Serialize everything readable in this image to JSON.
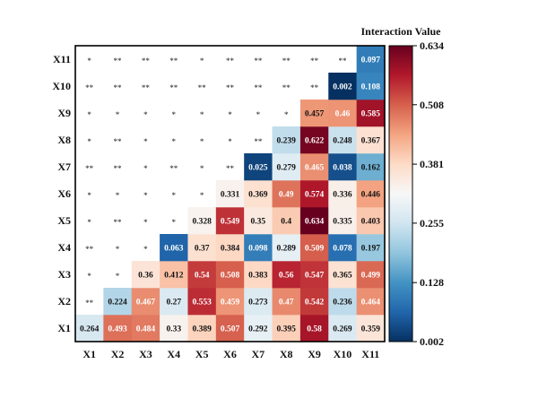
{
  "chart_data": {
    "type": "heatmap",
    "colorbar_title": "Interaction Value",
    "variables": [
      "X1",
      "X2",
      "X3",
      "X4",
      "X5",
      "X6",
      "X7",
      "X8",
      "X9",
      "X10",
      "X11"
    ],
    "value_range": [
      0.002,
      0.634
    ],
    "colorbar_ticks": [
      "0.002",
      "0.128",
      "0.255",
      "0.381",
      "0.508",
      "0.634"
    ],
    "lower_triangle": [
      [
        "0.264",
        "0.493",
        "0.484",
        "0.33",
        "0.389",
        "0.507",
        "0.292",
        "0.395",
        "0.58",
        "0.269",
        "0.359"
      ],
      [
        "0.224",
        "0.467",
        "0.27",
        "0.553",
        "0.459",
        "0.273",
        "0.47",
        "0.542",
        "0.236",
        "0.464"
      ],
      [
        "0.36",
        "0.412",
        "0.54",
        "0.508",
        "0.383",
        "0.56",
        "0.547",
        "0.365",
        "0.499"
      ],
      [
        "0.063",
        "0.37",
        "0.384",
        "0.098",
        "0.289",
        "0.509",
        "0.078",
        "0.197"
      ],
      [
        "0.328",
        "0.549",
        "0.35",
        "0.4",
        "0.634",
        "0.335",
        "0.403"
      ],
      [
        "0.331",
        "0.369",
        "0.49",
        "0.574",
        "0.336",
        "0.446"
      ],
      [
        "0.025",
        "0.279",
        "0.465",
        "0.038",
        "0.162"
      ],
      [
        "0.239",
        "0.622",
        "0.248",
        "0.367"
      ],
      [
        "0.457",
        "0.46",
        "0.585"
      ],
      [
        "0.002",
        "0.108"
      ],
      [
        "0.097"
      ]
    ],
    "upper_triangle_significance": [
      [],
      [
        "**"
      ],
      [
        "*",
        "*"
      ],
      [
        "**",
        "*",
        "*"
      ],
      [
        "*",
        "**",
        "*",
        "*"
      ],
      [
        "*",
        "*",
        "*",
        "*",
        "*"
      ],
      [
        "**",
        "**",
        "*",
        "**",
        "*",
        "**"
      ],
      [
        "*",
        "**",
        "*",
        "*",
        "*",
        "*",
        "**"
      ],
      [
        "*",
        "*",
        "*",
        "*",
        "*",
        "*",
        "*",
        "*"
      ],
      [
        "**",
        "**",
        "**",
        "**",
        "**",
        "**",
        "**",
        "**",
        "**"
      ],
      [
        "*",
        "**",
        "**",
        "**",
        "*",
        "**",
        "**",
        "**",
        "**",
        "**"
      ]
    ]
  }
}
